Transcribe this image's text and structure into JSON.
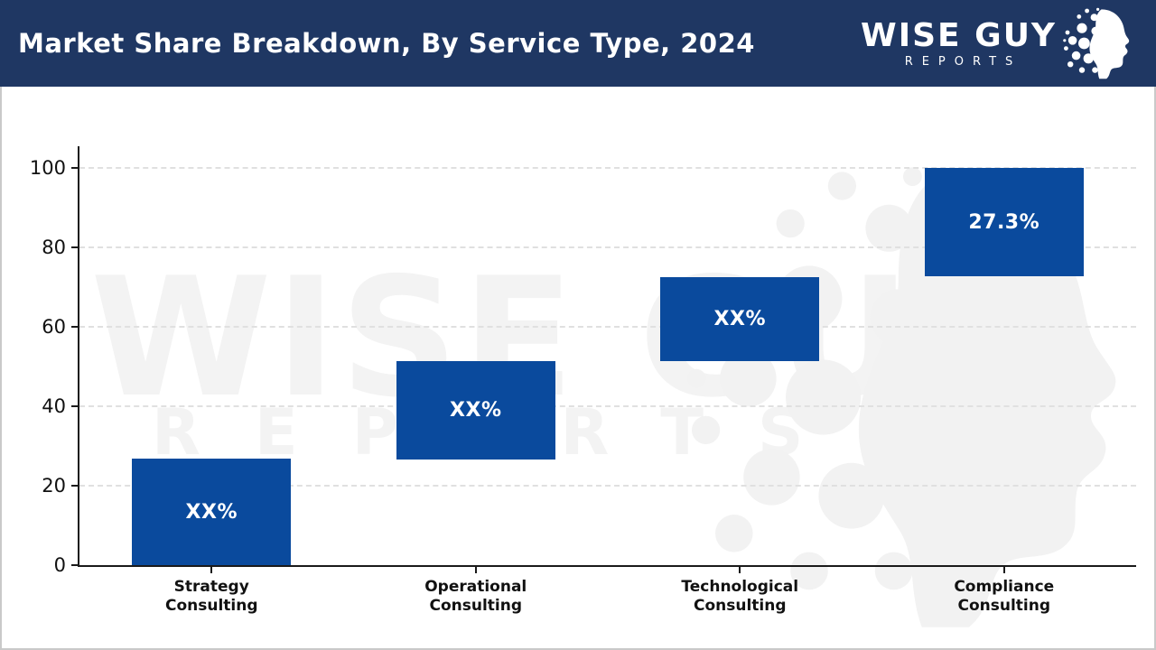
{
  "header": {
    "title": "Market Share Breakdown, By Service Type, 2024",
    "logo": {
      "line1": "WISE GUY",
      "line2": "REPORTS",
      "face_icon": "dotted-head-profile"
    }
  },
  "watermark": {
    "line1": "WISE GUY",
    "line2": "REPORTS",
    "face_icon": "dotted-head-profile"
  },
  "chart_data": {
    "type": "bar",
    "subtype": "waterfall",
    "title": "Market Share Breakdown, By Service Type, 2024",
    "xlabel": "",
    "ylabel": "",
    "ylim": [
      0,
      100
    ],
    "yticks": [
      0,
      20,
      40,
      60,
      80,
      100
    ],
    "grid": "horizontal-dashed",
    "legend": "none",
    "bar_color": "#0a4a9d",
    "label_color": "#ffffff",
    "categories": [
      "Strategy\nConsulting",
      "Operational\nConsulting",
      "Technological\nConsulting",
      "Compliance\nConsulting"
    ],
    "segments": [
      {
        "category": "Strategy Consulting",
        "start": 0,
        "end": 26.8,
        "value_label": "XX%"
      },
      {
        "category": "Operational Consulting",
        "start": 26.5,
        "end": 51.4,
        "value_label": "XX%"
      },
      {
        "category": "Technological Consulting",
        "start": 51.4,
        "end": 72.5,
        "value_label": "XX%"
      },
      {
        "category": "Compliance Consulting",
        "start": 72.7,
        "end": 100,
        "value_label": "27.3%"
      }
    ]
  }
}
